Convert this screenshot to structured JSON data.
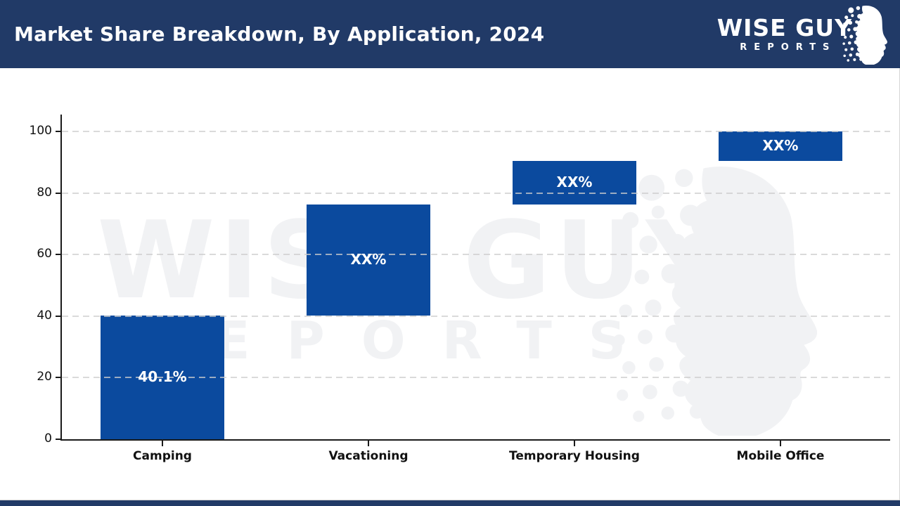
{
  "header": {
    "title": "Market Share Breakdown, By Application, 2024",
    "logo": {
      "line1": "WISE GUY",
      "line2": "REPORTS"
    }
  },
  "watermark": {
    "line1": "WISE GUY",
    "line2": "REPORTS"
  },
  "colors": {
    "header_bg": "#213a67",
    "bar": "#0b4a9e",
    "bar_label": "#ffffff",
    "axis": "#1a1a1a",
    "gridline": "#cdcdcd",
    "watermark": "#f1f2f4"
  },
  "chart_data": {
    "type": "bar",
    "subtype": "waterfall",
    "title": "Market Share Breakdown, By Application, 2024",
    "xlabel": "",
    "ylabel": "",
    "categories": [
      "Camping",
      "Vacationing",
      "Temporary Housing",
      "Mobile Office"
    ],
    "segments": [
      {
        "category": "Camping",
        "start": 0,
        "end": 40.1,
        "value": 40.1,
        "label": "40.1%"
      },
      {
        "category": "Vacationing",
        "start": 40.1,
        "end": 76.2,
        "value": 36.1,
        "label": "XX%"
      },
      {
        "category": "Temporary Housing",
        "start": 76.2,
        "end": 90.5,
        "value": 14.3,
        "label": "XX%"
      },
      {
        "category": "Mobile Office",
        "start": 90.5,
        "end": 100,
        "value": 9.5,
        "label": "XX%"
      }
    ],
    "yticks": [
      0,
      20,
      40,
      60,
      80,
      100
    ],
    "ylim": [
      0,
      105.5
    ],
    "grid": "horizontal-dashed",
    "legend": "none"
  }
}
